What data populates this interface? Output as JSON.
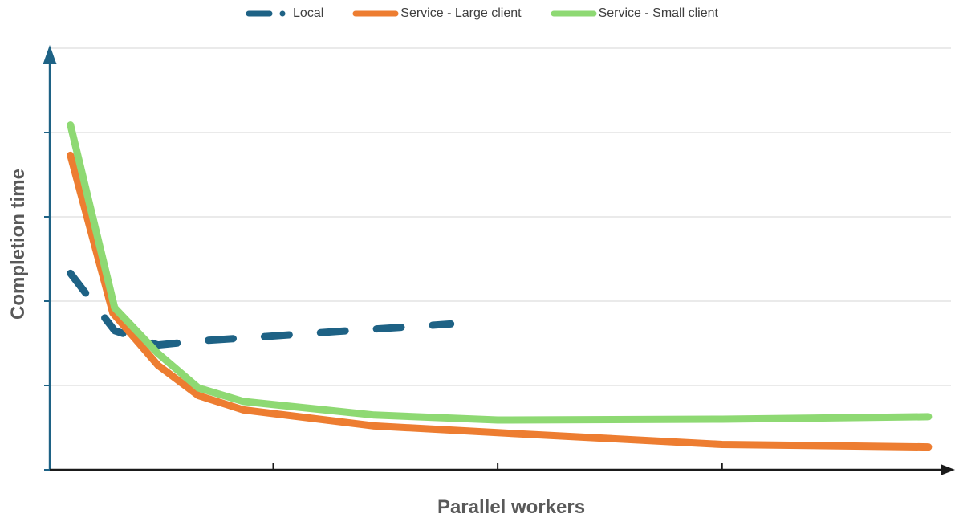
{
  "chart_data": {
    "type": "line",
    "xlabel": "Parallel workers",
    "ylabel": "Completion time",
    "grid": true,
    "legend_position": "top-center",
    "axes_note": "Both axes are qualitative: no numeric tick labels are shown. X is given as percent of axis length (0-100), Y in horizontal-gridline units above the x-axis (gridlines at 1,2,3,4,5).",
    "x_axis": {
      "tick_positions_pct": [
        24.8,
        49.7,
        74.6
      ],
      "tick_labels": [],
      "arrow": true
    },
    "y_axis": {
      "min": 0,
      "max": 5,
      "gridline_values": [
        1,
        2,
        3,
        4,
        5
      ],
      "tick_values": [
        0,
        1,
        2,
        3,
        4
      ],
      "tick_labels": [],
      "arrow": true
    },
    "series": [
      {
        "name": "Local",
        "color": "#1E6285",
        "style": "dashed",
        "points": [
          [
            2.3,
            2.33
          ],
          [
            7.2,
            1.65
          ],
          [
            12.0,
            1.48
          ],
          [
            16.7,
            1.53
          ],
          [
            23.9,
            1.58
          ],
          [
            31.9,
            1.64
          ],
          [
            39.0,
            1.69
          ],
          [
            44.5,
            1.73
          ]
        ]
      },
      {
        "name": "Service - Large client",
        "color": "#ED7D31",
        "style": "solid",
        "points": [
          [
            2.3,
            3.73
          ],
          [
            7.0,
            1.86
          ],
          [
            12.0,
            1.24
          ],
          [
            16.5,
            0.88
          ],
          [
            21.5,
            0.71
          ],
          [
            36.0,
            0.52
          ],
          [
            49.7,
            0.44
          ],
          [
            74.6,
            0.3
          ],
          [
            97.5,
            0.27
          ]
        ]
      },
      {
        "name": "Service - Small client",
        "color": "#8ED973",
        "style": "solid",
        "points": [
          [
            2.3,
            4.09
          ],
          [
            7.2,
            1.92
          ],
          [
            12.0,
            1.38
          ],
          [
            16.5,
            0.97
          ],
          [
            21.5,
            0.81
          ],
          [
            36.0,
            0.65
          ],
          [
            49.7,
            0.59
          ],
          [
            74.6,
            0.6
          ],
          [
            97.5,
            0.63
          ]
        ]
      }
    ],
    "colors": {
      "gridline": "#E3E3E3",
      "x_axis": "#1A1A1A",
      "y_axis": "#1E6285",
      "axis_label_text": "#595959",
      "legend_text": "#3F3F3F"
    }
  }
}
